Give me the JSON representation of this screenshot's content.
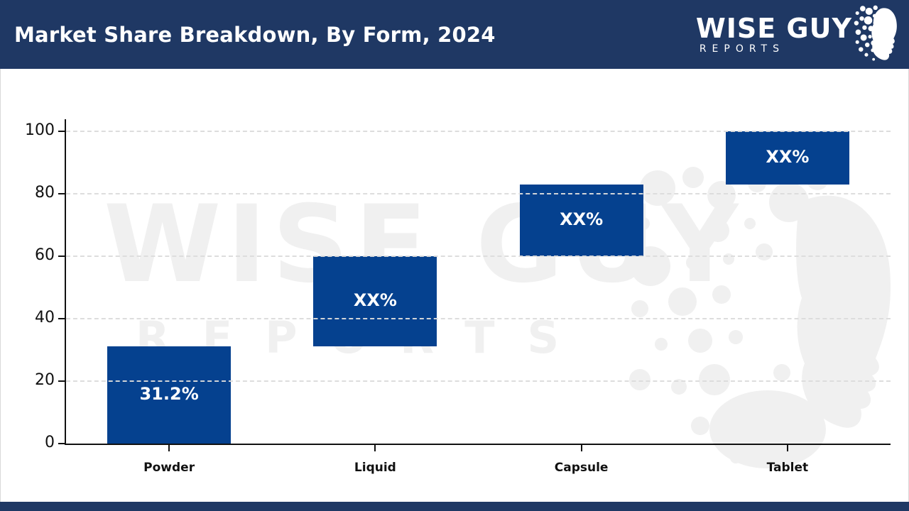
{
  "header": {
    "title": "Market Share Breakdown, By Form, 2024",
    "logo_line1": "WISE GUY",
    "logo_line2": "REPORTS"
  },
  "watermark": {
    "line1": "WISE GUY",
    "line2": "REPORTS"
  },
  "colors": {
    "header_bg": "#1f3864",
    "footer_bg": "#1f3864",
    "bar": "#05418f",
    "grid": "#dcdcdc",
    "axis": "#111111",
    "bar_label": "#ffffff",
    "watermark": "#f0f0f0"
  },
  "chart_data": {
    "type": "bar",
    "subtype": "waterfall",
    "title": "Market Share Breakdown, By Form, 2024",
    "categories": [
      "Powder",
      "Liquid",
      "Capsule",
      "Tablet"
    ],
    "series": [
      {
        "name": "Market Share",
        "segments": [
          {
            "category": "Powder",
            "start": 0,
            "end": 31.2,
            "label": "31.2%"
          },
          {
            "category": "Liquid",
            "start": 31.2,
            "end": 60,
            "label": "XX%"
          },
          {
            "category": "Capsule",
            "start": 60,
            "end": 83,
            "label": "XX%"
          },
          {
            "category": "Tablet",
            "start": 83,
            "end": 100,
            "label": "XX%"
          }
        ]
      }
    ],
    "xlabel": "",
    "ylabel": "",
    "yticks": [
      0,
      20,
      40,
      60,
      80,
      100
    ],
    "ylim": [
      0,
      103.8
    ],
    "grid": true,
    "grid_style": "dashed",
    "legend": false,
    "bar_width_fraction": 0.6
  }
}
